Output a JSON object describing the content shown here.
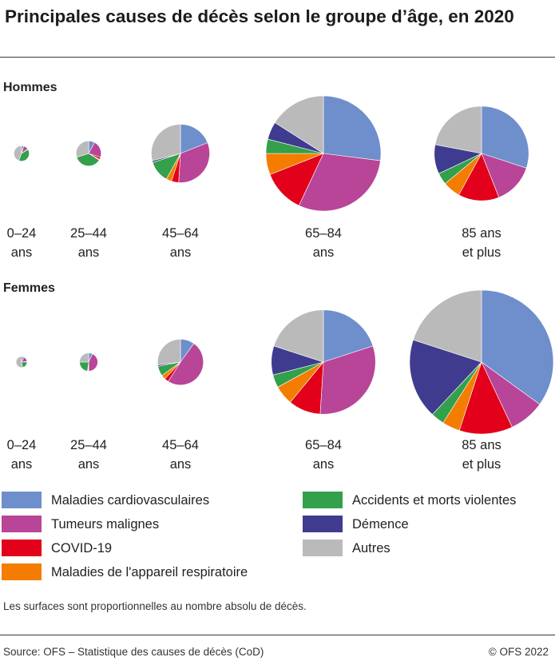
{
  "title": "Principales causes de décès selon le groupe d’âge, en 2020",
  "sections": {
    "men": "Hommes",
    "women": "Femmes"
  },
  "age_groups": [
    "0–24\nans",
    "25–44\nans",
    "45–64\nans",
    "65–84\nans",
    "85 ans\net plus"
  ],
  "legend": [
    {
      "label": "Maladies cardiovasculaires",
      "color": "#6e8fcc"
    },
    {
      "label": "Tumeurs malignes",
      "color": "#b84597"
    },
    {
      "label": "COVID-19",
      "color": "#e2001a"
    },
    {
      "label": "Maladies de l'appareil respiratoire",
      "color": "#f47c00"
    },
    {
      "label": "Accidents et morts violentes",
      "color": "#33a04b"
    },
    {
      "label": "Démence",
      "color": "#3f3c8f"
    },
    {
      "label": "Autres",
      "color": "#bababa"
    }
  ],
  "note": "Les surfaces sont proportionnelles au nombre absolu de décès.",
  "footer": {
    "source": "Source: OFS – Statistique des causes de décès (CoD)",
    "copyright": "© OFS 2022"
  },
  "chart_data": [
    {
      "type": "pie",
      "title": "Hommes",
      "series_names": [
        "Maladies cardiovasculaires",
        "Tumeurs malignes",
        "COVID-19",
        "Maladies de l'appareil respiratoire",
        "Accidents et morts violentes",
        "Démence",
        "Autres"
      ],
      "groups": [
        {
          "age": "0–24 ans",
          "total": 270,
          "shares": [
            0.05,
            0.1,
            0.0,
            0.01,
            0.4,
            0.0,
            0.44
          ]
        },
        {
          "age": "25–44 ans",
          "total": 720,
          "shares": [
            0.08,
            0.22,
            0.03,
            0.01,
            0.36,
            0.0,
            0.3
          ]
        },
        {
          "age": "45–64 ans",
          "total": 3900,
          "shares": [
            0.19,
            0.32,
            0.04,
            0.03,
            0.12,
            0.01,
            0.29
          ]
        },
        {
          "age": "65–84 ans",
          "total": 15100,
          "shares": [
            0.27,
            0.3,
            0.12,
            0.06,
            0.04,
            0.05,
            0.16
          ]
        },
        {
          "age": "85 ans et plus",
          "total": 10200,
          "shares": [
            0.3,
            0.14,
            0.14,
            0.06,
            0.04,
            0.1,
            0.22
          ]
        }
      ]
    },
    {
      "type": "pie",
      "title": "Femmes",
      "series_names": [
        "Maladies cardiovasculaires",
        "Tumeurs malignes",
        "COVID-19",
        "Maladies de l'appareil respiratoire",
        "Accidents et morts violentes",
        "Démence",
        "Autres"
      ],
      "groups": [
        {
          "age": "0–24 ans",
          "total": 140,
          "shares": [
            0.08,
            0.15,
            0.0,
            0.02,
            0.22,
            0.0,
            0.53
          ]
        },
        {
          "age": "25–44 ans",
          "total": 380,
          "shares": [
            0.07,
            0.43,
            0.01,
            0.01,
            0.23,
            0.0,
            0.25
          ]
        },
        {
          "age": "45–64 ans",
          "total": 2400,
          "shares": [
            0.1,
            0.49,
            0.03,
            0.03,
            0.07,
            0.01,
            0.27
          ]
        },
        {
          "age": "65–84 ans",
          "total": 12400,
          "shares": [
            0.2,
            0.31,
            0.1,
            0.06,
            0.04,
            0.09,
            0.2
          ]
        },
        {
          "age": "85 ans et plus",
          "total": 23600,
          "shares": [
            0.35,
            0.08,
            0.12,
            0.04,
            0.03,
            0.18,
            0.2
          ]
        }
      ]
    }
  ]
}
